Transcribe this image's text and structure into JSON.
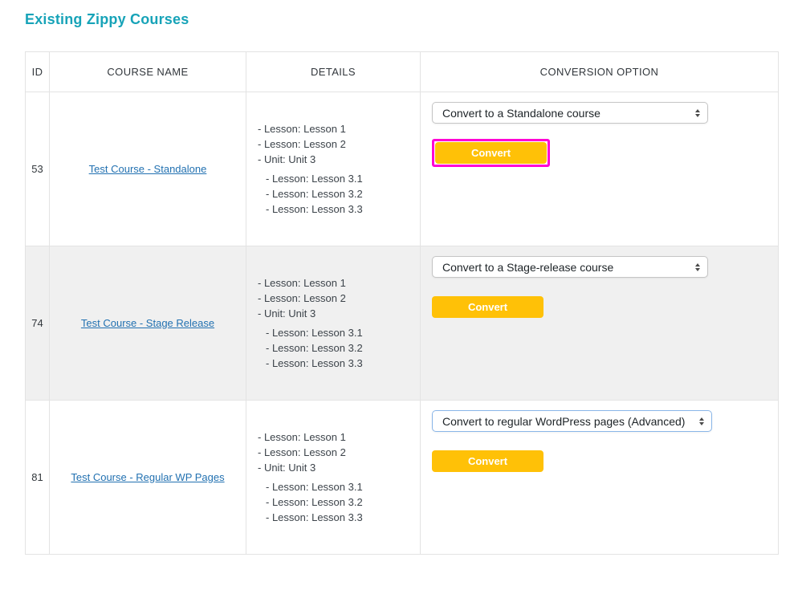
{
  "page": {
    "title": "Existing Zippy Courses"
  },
  "colors": {
    "title": "#17a3b8",
    "link": "#2271b1",
    "button_bg": "#ffc107",
    "button_text": "#ffffff",
    "highlight_border": "#ff00d4",
    "striped_row_bg": "#f0f0f0",
    "focused_select_border": "#8ab6e8"
  },
  "icons": {
    "select_arrows": "up-down-caret-icon"
  },
  "table": {
    "headers": {
      "id": "ID",
      "course_name": "COURSE NAME",
      "details": "DETAILS",
      "conversion": "CONVERSION OPTION"
    },
    "rows": [
      {
        "id": "53",
        "course_name": "Test Course - Standalone",
        "details": [
          "- Lesson: Lesson 1",
          "- Lesson: Lesson 2",
          "- Unit: Unit 3",
          "- Lesson: Lesson 3.1",
          "- Lesson: Lesson 3.2",
          "- Lesson: Lesson 3.3"
        ],
        "conversion_selected": "Convert to a Standalone course",
        "convert_label": "Convert"
      },
      {
        "id": "74",
        "course_name": "Test Course - Stage Release",
        "details": [
          "- Lesson: Lesson 1",
          "- Lesson: Lesson 2",
          "- Unit: Unit 3",
          "- Lesson: Lesson 3.1",
          "- Lesson: Lesson 3.2",
          "- Lesson: Lesson 3.3"
        ],
        "conversion_selected": "Convert to a Stage-release course",
        "convert_label": "Convert"
      },
      {
        "id": "81",
        "course_name": "Test Course - Regular WP Pages",
        "details": [
          "- Lesson: Lesson 1",
          "- Lesson: Lesson 2",
          "- Unit: Unit 3",
          "- Lesson: Lesson 3.1",
          "- Lesson: Lesson 3.2",
          "- Lesson: Lesson 3.3"
        ],
        "conversion_selected": "Convert to regular WordPress pages (Advanced)",
        "convert_label": "Convert"
      }
    ]
  }
}
